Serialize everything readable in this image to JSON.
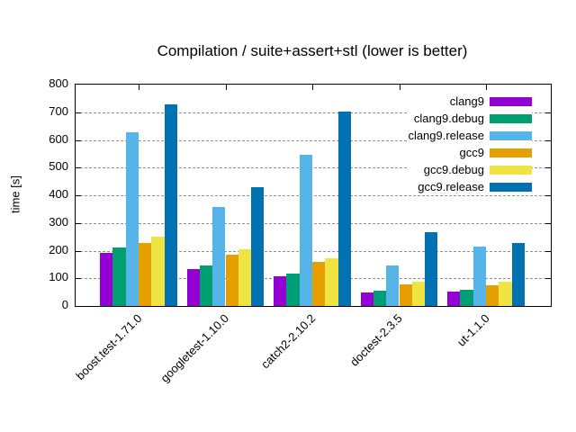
{
  "chart_data": {
    "type": "bar",
    "title": "Compilation / suite+assert+stl (lower is better)",
    "xlabel": "",
    "ylabel": "time [s]",
    "ylim": [
      0,
      800
    ],
    "ytick_step": 100,
    "grid": "horizontal-dashed",
    "legend_position": "top-right-inside",
    "categories": [
      "boost.test-1.71.0",
      "googletest-1.10.0",
      "catch2-2.10.2",
      "doctest-2.3.5",
      "ut-1.1.0"
    ],
    "series": [
      {
        "name": "clang9",
        "color": "#9400D3",
        "values": [
          193,
          132,
          108,
          49,
          52
        ]
      },
      {
        "name": "clang9.debug",
        "color": "#009E73",
        "values": [
          210,
          148,
          116,
          56,
          58
        ]
      },
      {
        "name": "clang9.release",
        "color": "#56B4E9",
        "values": [
          627,
          358,
          545,
          145,
          214
        ]
      },
      {
        "name": "gcc9",
        "color": "#E69F00",
        "values": [
          228,
          184,
          160,
          78,
          76
        ]
      },
      {
        "name": "gcc9.debug",
        "color": "#F0E442",
        "values": [
          250,
          205,
          172,
          88,
          88
        ]
      },
      {
        "name": "gcc9.release",
        "color": "#0072B2",
        "values": [
          730,
          428,
          703,
          268,
          229
        ]
      }
    ],
    "axis_color": "#000000",
    "grid_color": "#909090"
  }
}
